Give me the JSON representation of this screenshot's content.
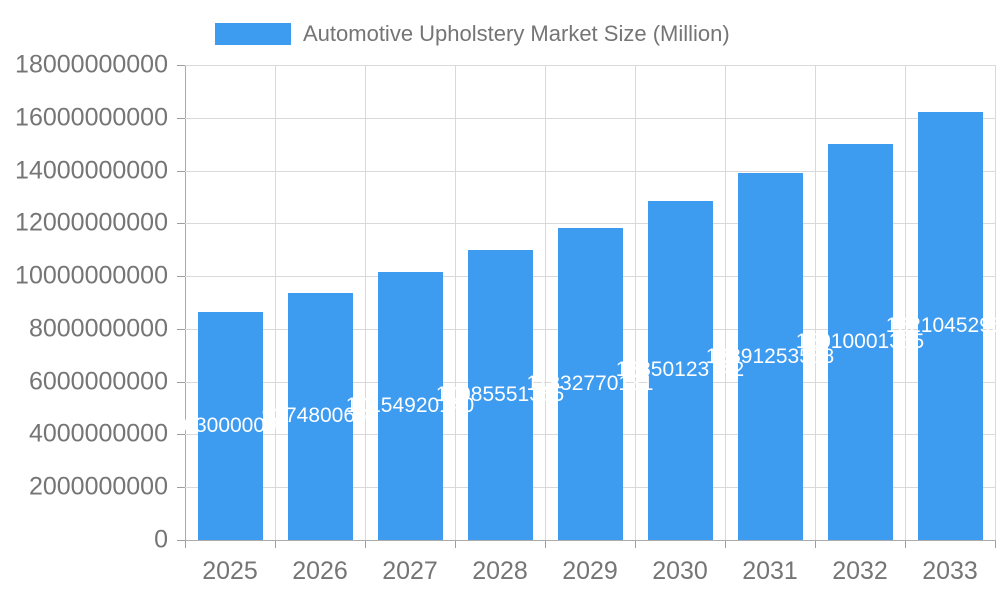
{
  "legend": {
    "label": "Automotive Upholstery Market Size (Million)"
  },
  "colors": {
    "bar": "#3d9bf0",
    "annotation_text": "#ffffff",
    "axis_text": "#757575",
    "gridline": "#d9d9d9",
    "axis_line": "#ababab"
  },
  "chart_data": {
    "type": "bar",
    "title": "",
    "legend_entries": [
      "Automotive Upholstery Market Size (Million)"
    ],
    "legend_position": "top",
    "categories": [
      "2025",
      "2026",
      "2027",
      "2028",
      "2029",
      "2030",
      "2031",
      "2032",
      "2033"
    ],
    "series": [
      {
        "name": "Automotive Upholstery Market Size (Million)",
        "values": [
          8630000000,
          9374800660,
          10154920140,
          10985551365,
          11832770131,
          12850123742,
          13891253588,
          15010001365,
          16210452965
        ]
      }
    ],
    "data_labels_shown_inside_bars": true,
    "xlabel": "",
    "ylabel": "",
    "ylim": [
      0,
      18000000000
    ],
    "ytick_step": 2000000000,
    "y_tick_labels": [
      "0",
      "2000000000",
      "4000000000",
      "6000000000",
      "8000000000",
      "10000000000",
      "12000000000",
      "14000000000",
      "16000000000",
      "18000000000"
    ],
    "grid": true
  }
}
